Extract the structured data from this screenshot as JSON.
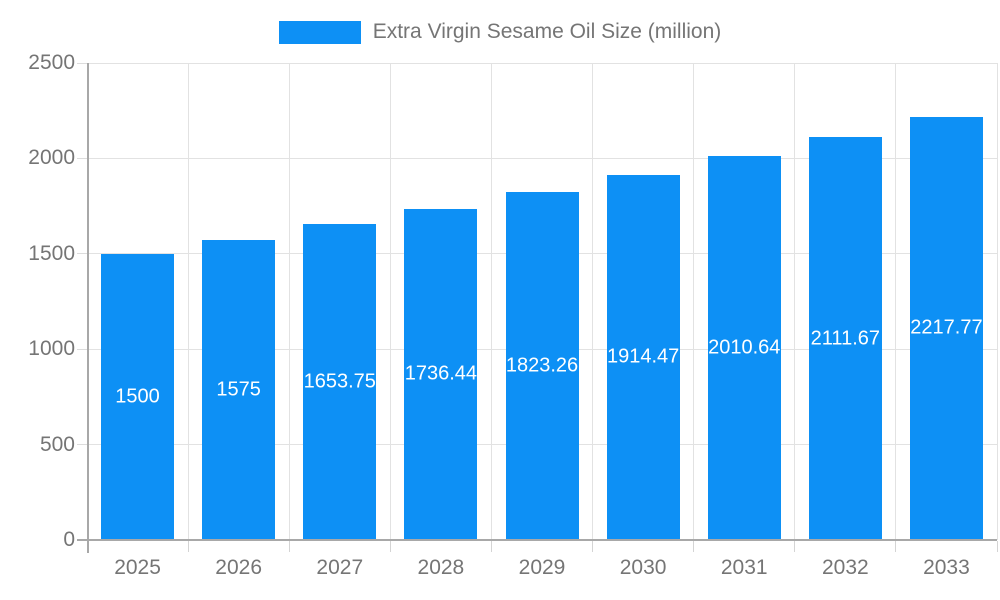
{
  "legend": {
    "label": "Extra Virgin Sesame Oil Size (million)"
  },
  "colors": {
    "bar": "#0d90f5",
    "grid": "#e2e2e2",
    "axis": "#a8a8a8",
    "tick_text": "#757575",
    "bar_label_text": "#ffffff",
    "background": "#ffffff"
  },
  "chart_data": {
    "type": "bar",
    "title": "Extra Virgin Sesame Oil Size (million)",
    "categories": [
      "2025",
      "2026",
      "2027",
      "2028",
      "2029",
      "2030",
      "2031",
      "2032",
      "2033"
    ],
    "values": [
      1500,
      1575,
      1653.75,
      1736.44,
      1823.26,
      1914.47,
      2010.64,
      2111.67,
      2217.77
    ],
    "value_labels": [
      "1500",
      "1575",
      "1653.75",
      "1736.44",
      "1823.26",
      "1914.47",
      "2010.64",
      "2111.67",
      "2217.77"
    ],
    "xlabel": "",
    "ylabel": "",
    "ylim": [
      0,
      2500
    ],
    "yticks": [
      0,
      500,
      1000,
      1500,
      2000,
      2500
    ],
    "grid": true,
    "legend_position": "top",
    "bar_label_position": "center-inside"
  }
}
